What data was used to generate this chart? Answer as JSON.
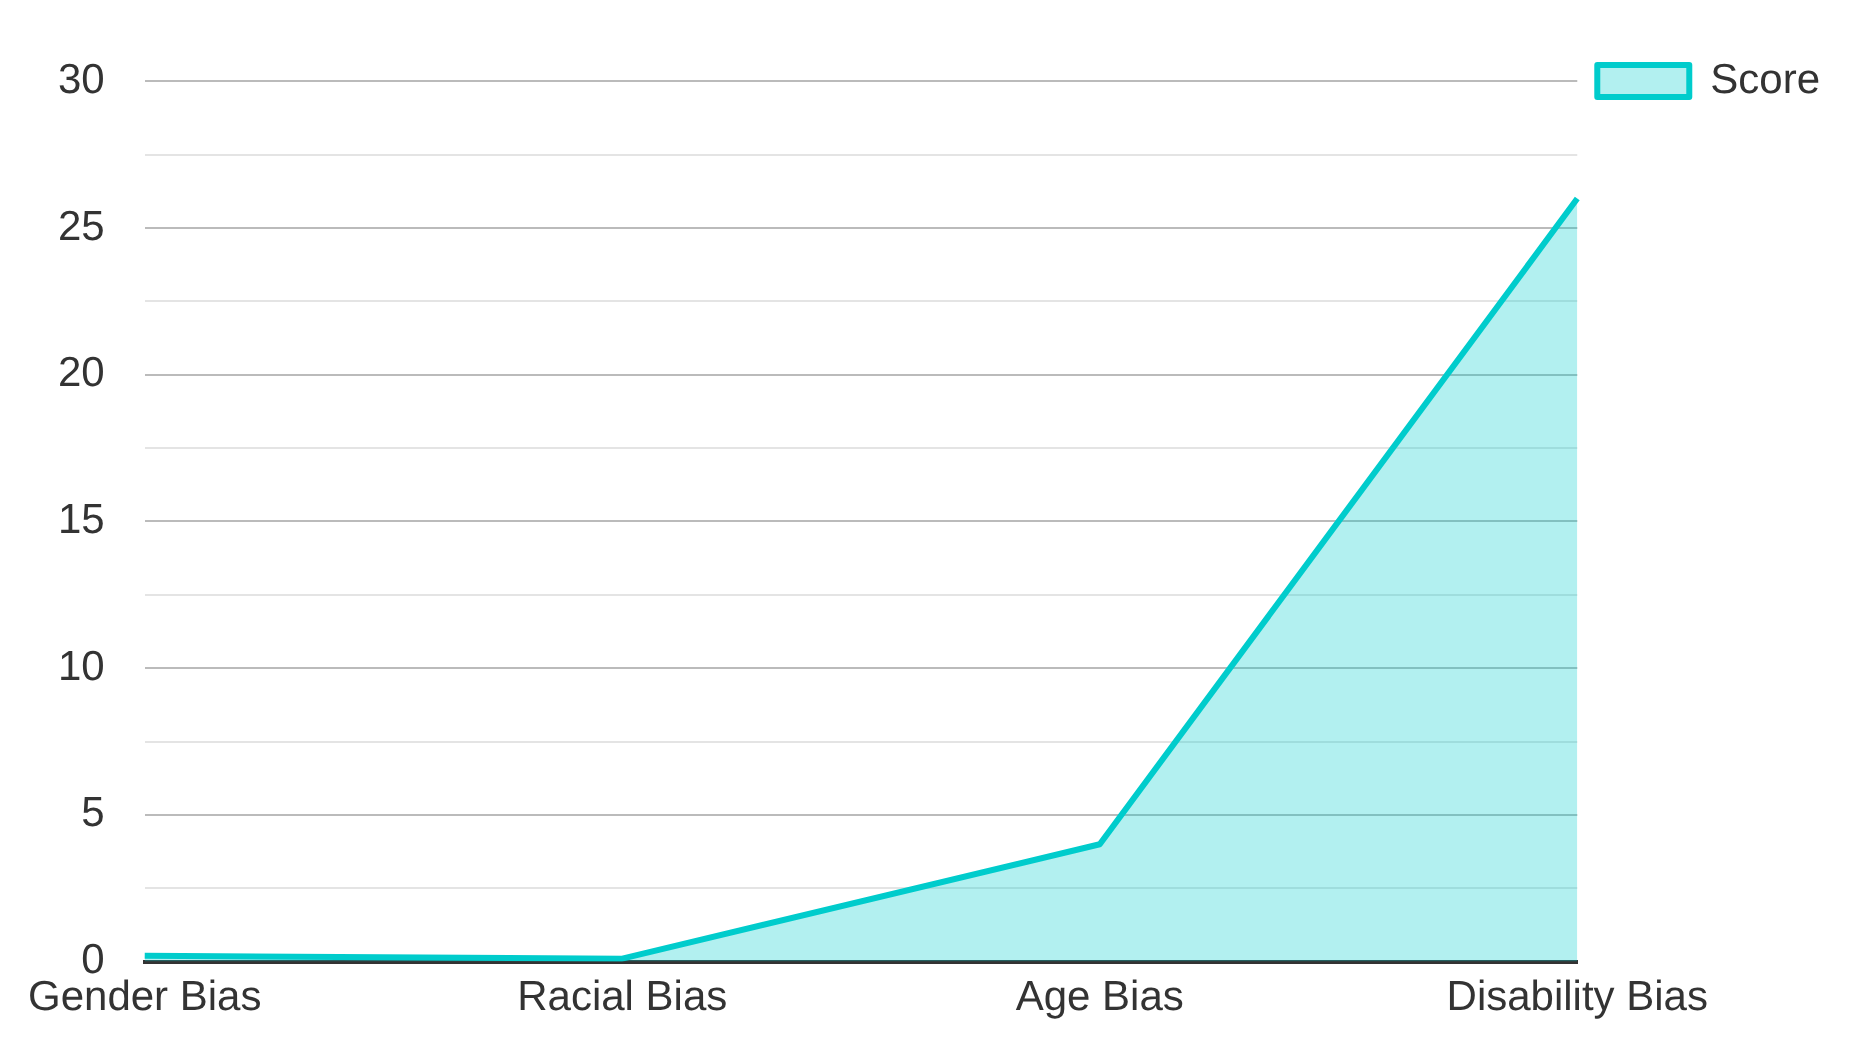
{
  "chart_data": {
    "type": "area",
    "categories": [
      "Gender Bias",
      "Racial Bias",
      "Age Bias",
      "Disability Bias"
    ],
    "series": [
      {
        "name": "Score",
        "color": "#00cccc",
        "values": [
          0.2,
          0.1,
          4,
          26
        ]
      }
    ],
    "ylim": [
      0,
      30
    ],
    "yticks": [
      0,
      {
        "value": 2.5,
        "label": null
      },
      5,
      {
        "value": 7.5,
        "label": null
      },
      10,
      {
        "value": 12.5,
        "label": null
      },
      15,
      {
        "value": 17.5,
        "label": null
      },
      20,
      {
        "value": 22.5,
        "label": null
      },
      25,
      {
        "value": 27.5,
        "label": null
      },
      30
    ],
    "grid": "y",
    "legend": "top right",
    "marker": "none"
  }
}
